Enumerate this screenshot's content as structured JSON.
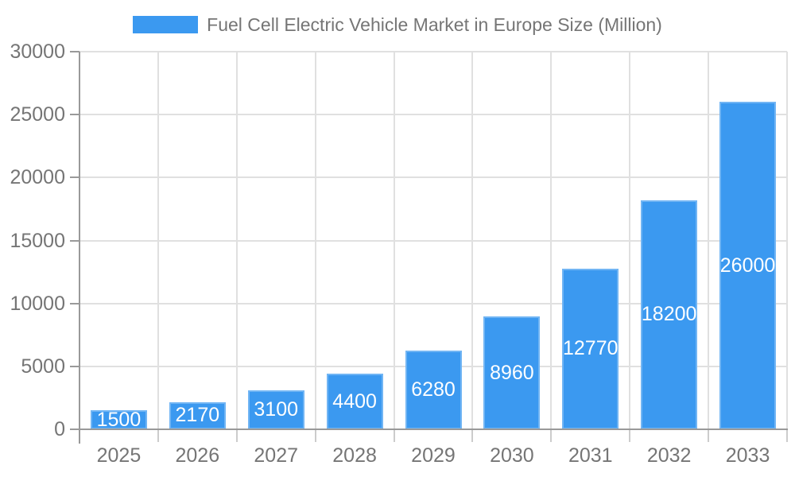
{
  "legend": {
    "label": "Fuel Cell Electric Vehicle Market in Europe Size (Million)"
  },
  "colors": {
    "bar": "#3b99f0",
    "bar_label": "#ffffff",
    "axis": "#999999",
    "grid": "#e0e0e0",
    "category_tick": "#cccccc",
    "axis_text": "#757575",
    "background": "#ffffff"
  },
  "chart_data": {
    "type": "bar",
    "title": "Fuel Cell Electric Vehicle Market in Europe Size (Million)",
    "categories": [
      "2025",
      "2026",
      "2027",
      "2028",
      "2029",
      "2030",
      "2031",
      "2032",
      "2033"
    ],
    "values": [
      1500,
      2170,
      3100,
      4400,
      6280,
      8960,
      12770,
      18200,
      26000
    ],
    "series": [
      {
        "name": "Fuel Cell Electric Vehicle Market in Europe Size (Million)",
        "values": [
          1500,
          2170,
          3100,
          4400,
          6280,
          8960,
          12770,
          18200,
          26000
        ]
      }
    ],
    "xlabel": "",
    "ylabel": "",
    "ylim": [
      0,
      30000
    ],
    "y_ticks": [
      0,
      5000,
      10000,
      15000,
      20000,
      25000,
      30000
    ],
    "grid": true,
    "legend_position": "top-center",
    "bar_label_position": "inside-center"
  }
}
